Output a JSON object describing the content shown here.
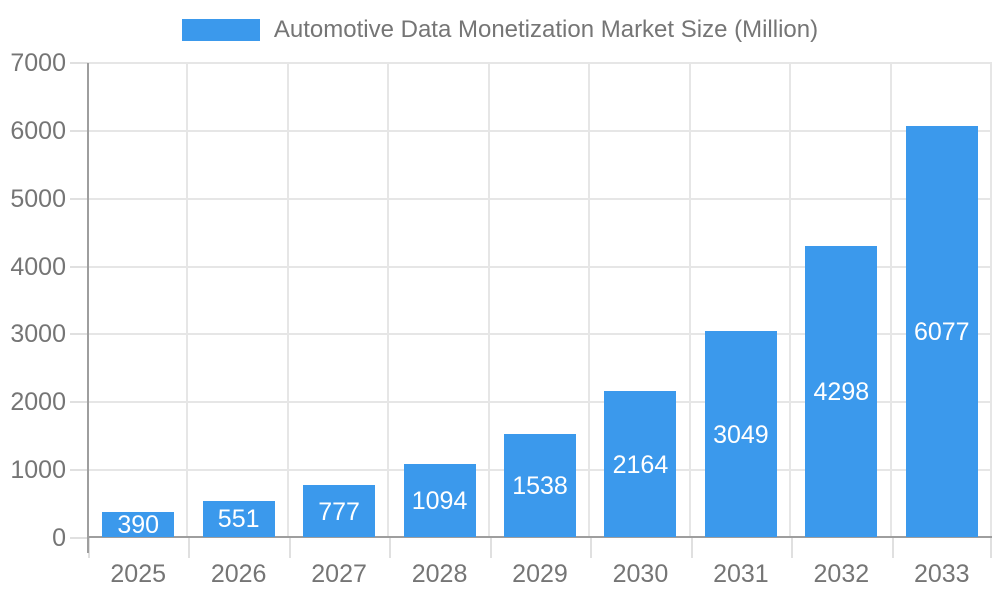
{
  "chart_data": {
    "type": "bar",
    "title": "Automotive Data Monetization Market Size (Million)",
    "categories": [
      "2025",
      "2026",
      "2027",
      "2028",
      "2029",
      "2030",
      "2031",
      "2032",
      "2033"
    ],
    "values": [
      390,
      551,
      777,
      1094,
      1538,
      2164,
      3049,
      4298,
      6077
    ],
    "xlabel": "",
    "ylabel": "",
    "ylim": [
      0,
      7000
    ],
    "ytick_interval": 1000,
    "yticks": [
      0,
      1000,
      2000,
      3000,
      4000,
      5000,
      6000,
      7000
    ],
    "grid": true,
    "legend_position": "top",
    "bar_labels_inside": true,
    "colors": {
      "bar": "#3b99ec",
      "bar_label": "#ffffff",
      "axis_line": "#9e9e9e",
      "gridline": "#e6e6e6",
      "tick": "#e0e0e0",
      "axis_text": "#757575"
    }
  },
  "legend": {
    "label": "Automotive Data Monetization Market Size (Million)"
  }
}
